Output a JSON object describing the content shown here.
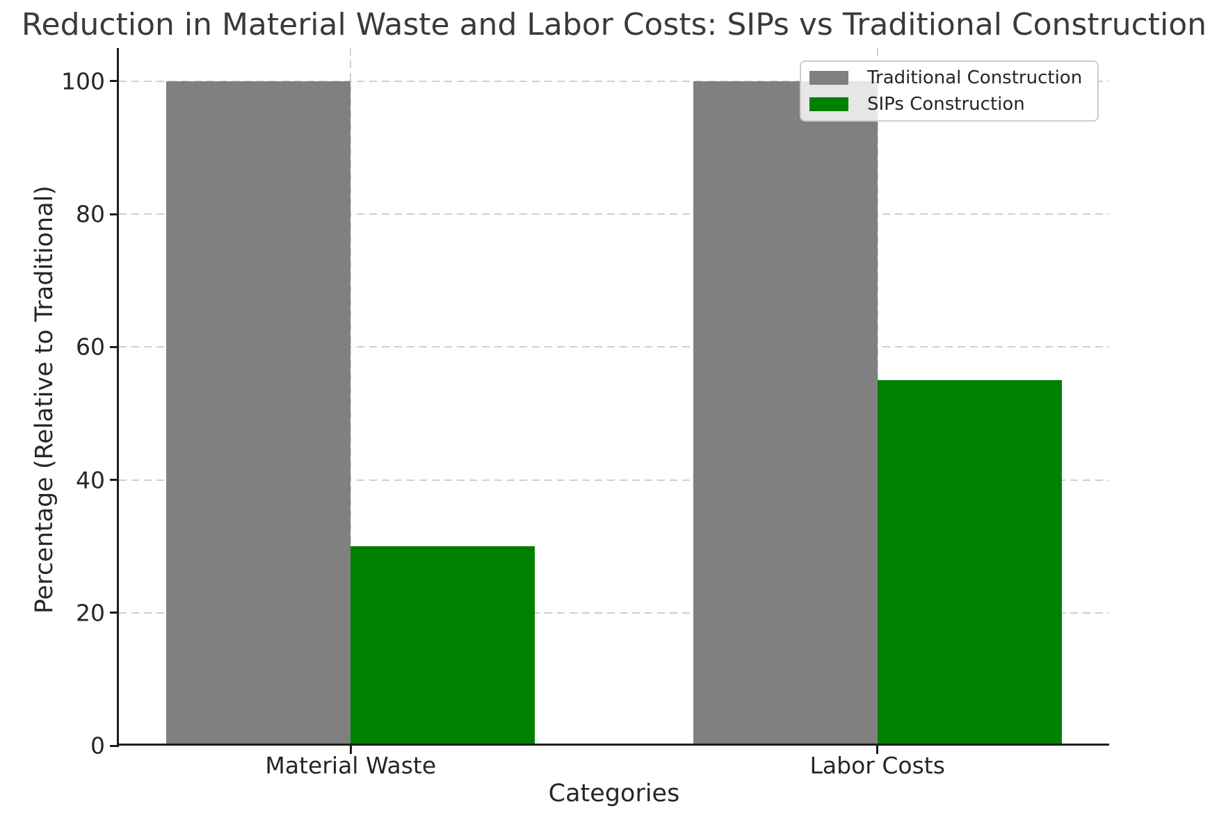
{
  "chart_data": {
    "type": "bar",
    "title": "Reduction in Material Waste and Labor Costs: SIPs vs Traditional Construction",
    "xlabel": "Categories",
    "ylabel": "Percentage (Relative to Traditional)",
    "categories": [
      "Material Waste",
      "Labor Costs"
    ],
    "series": [
      {
        "name": "Traditional Construction",
        "color": "#808080",
        "values": [
          100,
          100
        ]
      },
      {
        "name": "SIPs Construction",
        "color": "#008000",
        "values": [
          30,
          55
        ]
      }
    ],
    "ylim": [
      0,
      105
    ],
    "xlim": [
      -0.44,
      1.44
    ],
    "yticks": [
      0,
      20,
      40,
      60,
      80,
      100
    ],
    "bar_width": 0.35,
    "grid": "dashed",
    "grid_color": "#cfcfcf",
    "legend_position": "upper right",
    "legend_entries": [
      "Traditional Construction",
      "SIPs Construction"
    ],
    "bar_colors": {
      "traditional": "#808080",
      "sips": "#008000"
    }
  }
}
